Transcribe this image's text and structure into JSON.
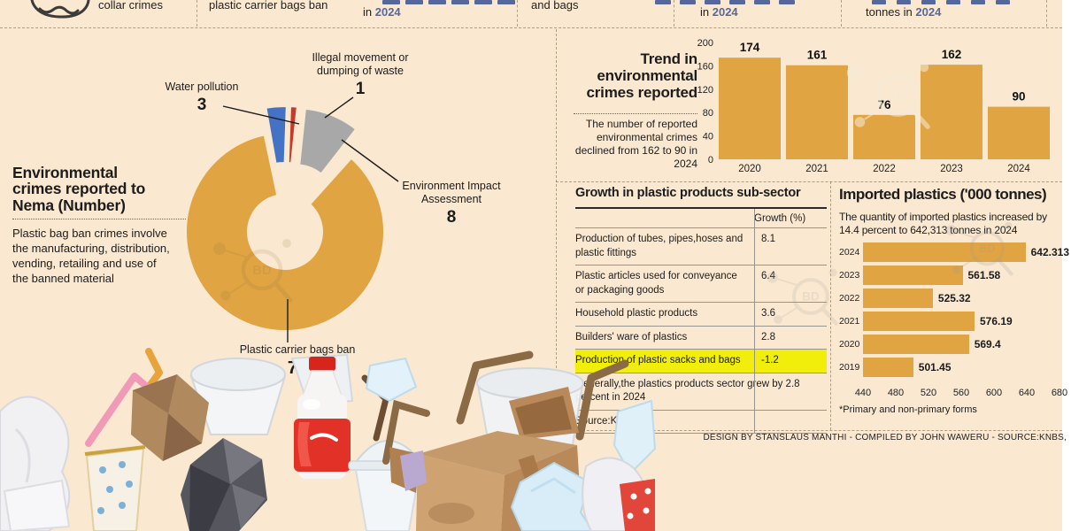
{
  "colors": {
    "background": "#FAE8D0",
    "orange": "#E0A443",
    "blue": "#4472C4",
    "red": "#C8382B",
    "gray": "#A8A8A8",
    "highlight_yellow": "#F2EE0B",
    "year_blue": "#56689B"
  },
  "top_strip": {
    "items": [
      {
        "text": "collar crimes"
      },
      {
        "text": "plastic carrier bags ban"
      },
      {
        "prefix": "in ",
        "year": "2024"
      },
      {
        "text": "and bags"
      },
      {
        "prefix": "in ",
        "year": "2024"
      },
      {
        "prefix": "tonnes in ",
        "year": "2024"
      }
    ]
  },
  "chart_data": [
    {
      "type": "pie",
      "name": "environmental-crimes-donut",
      "title": "Environmental crimes reported to Nema (Number)",
      "note": "Plastic bag ban crimes involve the manufacturing, distribution, vending, retailing and use of the banned material",
      "segments": [
        {
          "label": "Water pollution",
          "value": 3,
          "color": "#4472C4",
          "explode": true
        },
        {
          "label": "Illegal movement or dumping of waste",
          "value": 1,
          "color": "#C8382B",
          "explode": true
        },
        {
          "label": "Environment Impact Assessment",
          "value": 8,
          "color": "#A8A8A8",
          "explode": true
        },
        {
          "label": "Plastic carrier bags ban",
          "value": 78,
          "color": "#E0A443",
          "explode": false
        }
      ],
      "total": 90
    },
    {
      "type": "bar",
      "name": "trend-environmental-crimes",
      "title": "Trend in environmental crimes reported",
      "subtitle": "The number of reported environmental crimes declined from 162 to 90 in 2024",
      "categories": [
        "2020",
        "2021",
        "2022",
        "2023",
        "2024"
      ],
      "values": [
        174,
        161,
        76,
        162,
        90
      ],
      "ylim": [
        0,
        200
      ],
      "yticks": [
        200,
        160,
        120,
        80,
        40,
        0
      ],
      "bar_color": "#E0A443"
    },
    {
      "type": "table",
      "name": "growth-plastic-subsector",
      "title": "Growth in plastic products sub-sector",
      "value_header": "Growth (%)",
      "rows": [
        {
          "label": "Production of tubes, pipes,hoses and plastic fittings",
          "value": "8.1",
          "highlight": false
        },
        {
          "label": "Plastic articles used for conveyance or packaging goods",
          "value": "6.4",
          "highlight": false
        },
        {
          "label": "Household plastic products",
          "value": "3.6",
          "highlight": false
        },
        {
          "label": "Builders' ware of plastics",
          "value": "2.8",
          "highlight": false
        },
        {
          "label": "Production of plastic sacks and bags",
          "value": "-1.2",
          "highlight": true
        }
      ],
      "note": "Generally,the plastics products sector grew by 2.8 percent in 2024",
      "source": "Source:KNBS"
    },
    {
      "type": "hbar",
      "name": "imported-plastics",
      "title": "Imported plastics ('000 tonnes)",
      "subtitle_lines": [
        "The quantity of imported plastics increased by",
        "14.4 percent to 642,313 tonnes in 2024"
      ],
      "categories": [
        "2024",
        "2023",
        "2022",
        "2021",
        "2020",
        "2019"
      ],
      "values": [
        642.313,
        561.58,
        525.32,
        576.19,
        569.4,
        501.45
      ],
      "value_labels": [
        "642.313",
        "561.58",
        "525.32",
        "576.19",
        "569.4",
        "501.45"
      ],
      "xlim": [
        440,
        680
      ],
      "xticks": [
        440,
        480,
        520,
        560,
        600,
        640,
        680
      ],
      "footnote": "*Primary and non-primary forms",
      "bar_color": "#E0A443"
    }
  ],
  "credits": {
    "text": "DESIGN BY STANSLAUS MANTHI  - COMPILED BY JOHN WAWERU - SOURCE:KNBS,"
  }
}
